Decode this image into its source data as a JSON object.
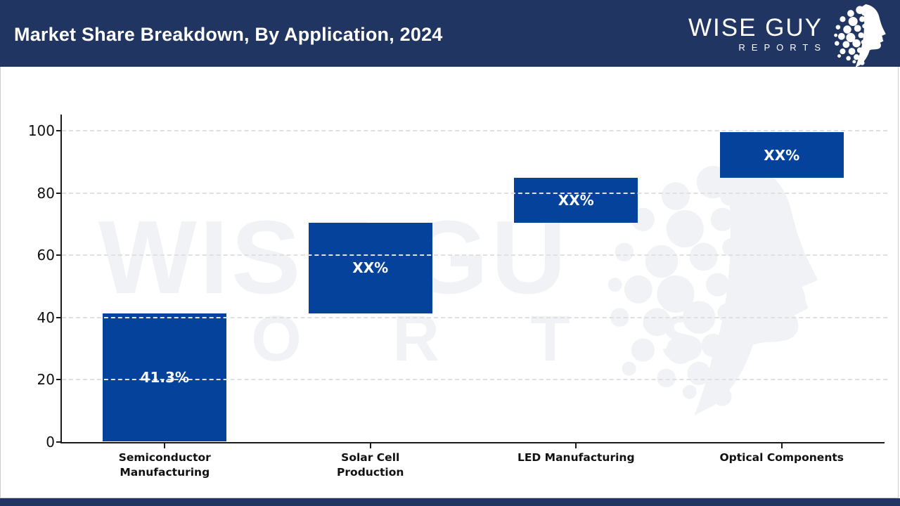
{
  "header": {
    "title": "Market Share Breakdown, By Application, 2024",
    "bg_color": "#203561",
    "logo": {
      "line1": "WISE GUY",
      "line2": "REPORTS"
    }
  },
  "footer": {
    "bg_color": "#203561"
  },
  "watermark": {
    "line1": "WISE GU",
    "line2": "P O R T S"
  },
  "chart_data": {
    "type": "bar",
    "variant": "waterfall",
    "title": "Market Share Breakdown, By Application, 2024",
    "xlabel": "",
    "ylabel": "",
    "ylim": [
      0,
      105
    ],
    "yticks": [
      0,
      20,
      40,
      60,
      80,
      100
    ],
    "grid": "horizontal-dashed",
    "legend": "none",
    "bar_color": "#04429c",
    "categories": [
      "Semiconductor Manufacturing",
      "Solar Cell Production",
      "LED Manufacturing",
      "Optical Components"
    ],
    "category_lines": [
      [
        "Semiconductor",
        "Manufacturing"
      ],
      [
        "Solar Cell",
        "Production"
      ],
      [
        "LED Manufacturing"
      ],
      [
        "Optical Components"
      ]
    ],
    "segments": [
      {
        "category": "Semiconductor Manufacturing",
        "start": 0,
        "end": 41.3,
        "label": "41.3%"
      },
      {
        "category": "Solar Cell Production",
        "start": 41.3,
        "end": 70.4,
        "label": "XX%"
      },
      {
        "category": "LED Manufacturing",
        "start": 70.4,
        "end": 84.8,
        "label": "XX%"
      },
      {
        "category": "Optical Components",
        "start": 84.8,
        "end": 99.6,
        "label": "XX%"
      }
    ]
  }
}
